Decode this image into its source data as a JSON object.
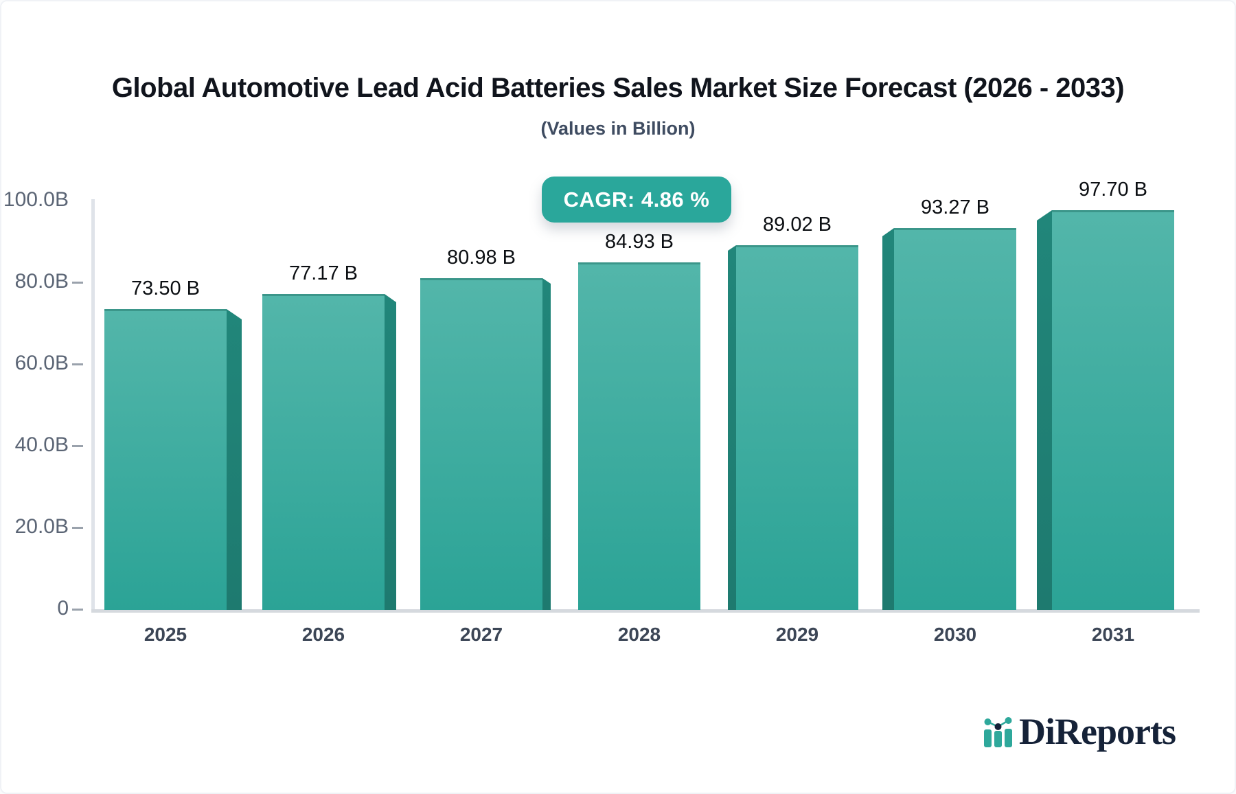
{
  "title": "Global Automotive Lead Acid Batteries Sales Market Size Forecast (2026 - 2033)",
  "subtitle": "(Values in Billion)",
  "badge": {
    "label": "CAGR: 4.86 %",
    "color": "#2aa79b"
  },
  "chart_data": {
    "type": "bar",
    "title": "Global Automotive Lead Acid Batteries Sales Market Size Forecast (2026 - 2033)",
    "subtitle": "(Values in Billion)",
    "categories": [
      "2025",
      "2026",
      "2027",
      "2028",
      "2029",
      "2030",
      "2031"
    ],
    "values": [
      73.5,
      77.17,
      80.98,
      84.93,
      89.02,
      93.27,
      97.7
    ],
    "value_labels": [
      "73.50 B",
      "77.17 B",
      "80.98 B",
      "84.93 B",
      "89.02 B",
      "93.27 B",
      "97.70 B"
    ],
    "yticks": [
      {
        "label": "100.0B",
        "value": 100,
        "dash": false
      },
      {
        "label": "80.0B",
        "value": 80,
        "dash": true
      },
      {
        "label": "60.0B",
        "value": 60,
        "dash": true
      },
      {
        "label": "40.0B",
        "value": 40,
        "dash": true
      },
      {
        "label": "20.0B",
        "value": 20,
        "dash": true
      },
      {
        "label": "0",
        "value": 0,
        "dash": true
      }
    ],
    "ylim": [
      0,
      100
    ],
    "legend": "none",
    "grid": "off",
    "colors": {
      "bar_face_top": "#53b6aa",
      "bar_face_bottom": "#2ba396",
      "bar_side": "#1e7a6f",
      "axis_line": "#dfe3e9",
      "baseline": "#d5d9de",
      "tick": "#9aa2ac"
    }
  },
  "logo": {
    "text": "DiReports",
    "icon": "mini-bar-chart-with-dots",
    "icon_color": "#2ea89b",
    "dot_accent_color": "#152238"
  }
}
